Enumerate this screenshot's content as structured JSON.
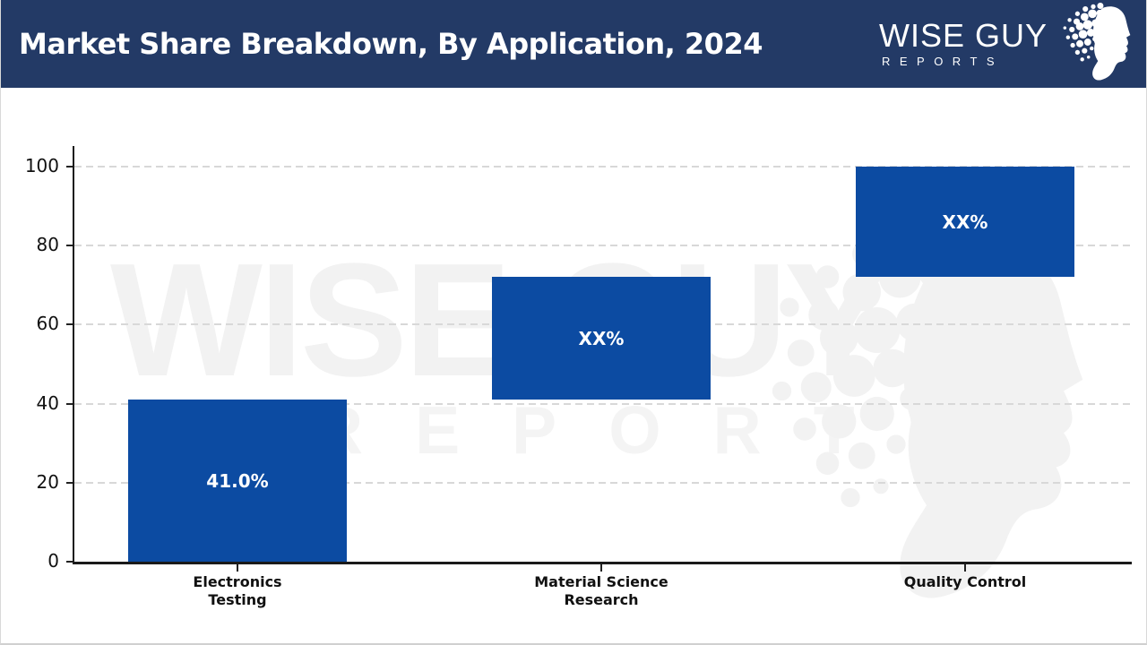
{
  "header": {
    "title": "Market Share Breakdown, By Application, 2024",
    "bg_color": "#233A66",
    "logo": {
      "line1": "WISE GUY",
      "line2": "REPORTS",
      "face_icon": "dotted-head-profile"
    }
  },
  "watermark": {
    "line1": "WISE GUY",
    "line2": "REPORTS",
    "face_icon": "dotted-head-profile"
  },
  "chart_data": {
    "type": "bar",
    "variant": "waterfall",
    "title": "Market Share Breakdown, By Application, 2024",
    "xlabel": "",
    "ylabel": "",
    "categories": [
      [
        "Electronics",
        "Testing"
      ],
      [
        "Material Science",
        "Research"
      ],
      [
        "Quality Control"
      ]
    ],
    "segments": [
      {
        "name": "Electronics Testing",
        "start": 0,
        "end": 41,
        "label": "41.0%"
      },
      {
        "name": "Material Science Research",
        "start": 41,
        "end": 72,
        "label": "XX%"
      },
      {
        "name": "Quality Control",
        "start": 72,
        "end": 100,
        "label": "XX%"
      }
    ],
    "y_ticks": [
      0,
      20,
      40,
      60,
      80,
      100
    ],
    "ylim": [
      0,
      105
    ],
    "grid": {
      "horizontal": true,
      "style": "dashed",
      "color": "#d8d8d8"
    },
    "legend": "none",
    "bar_color": "#0C4BA2",
    "bar_label_color": "#ffffff",
    "axis_color": "#1a1a1a",
    "tick_label_color": "#111111"
  }
}
